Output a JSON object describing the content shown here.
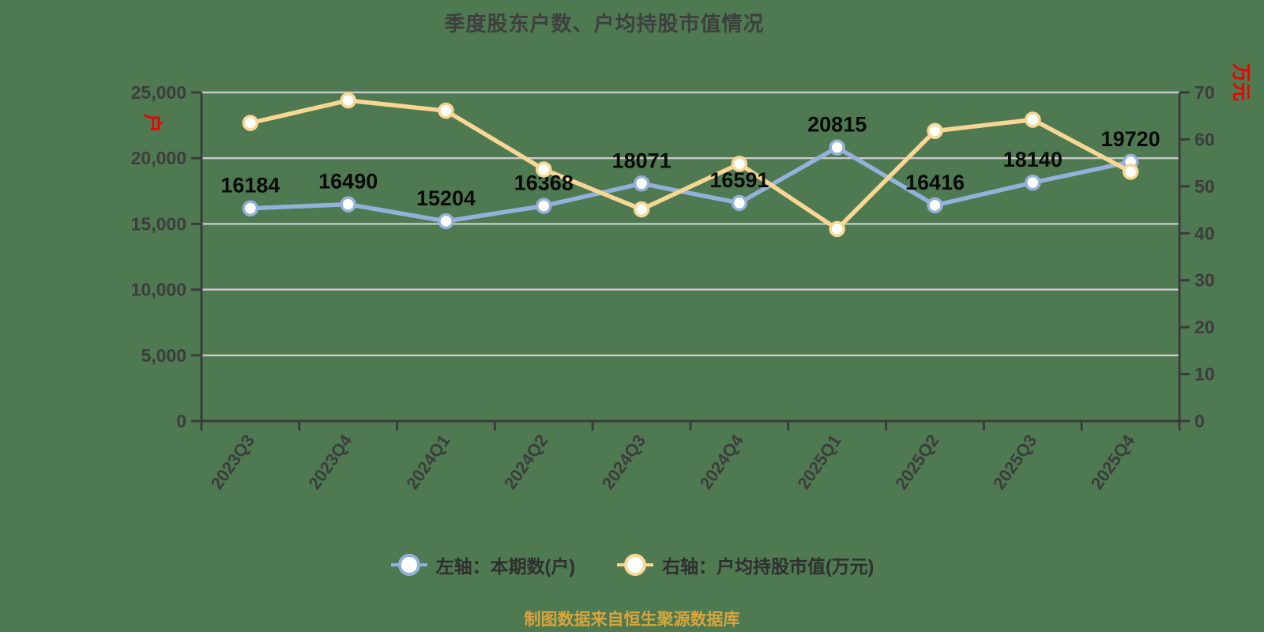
{
  "title": "季度股东户数、户均持股市值情况",
  "footer": "制图数据来自恒生聚源数据库",
  "axes": {
    "left": {
      "unit": "户",
      "ticks": [
        "25,000",
        "20,000",
        "15,000",
        "10,000",
        "5,000",
        "0"
      ]
    },
    "right": {
      "unit": "万元",
      "ticks": [
        "70",
        "60",
        "50",
        "40",
        "30",
        "20",
        "10",
        "0"
      ]
    }
  },
  "legend": [
    {
      "label": "左轴：本期数(户)",
      "color": "#94b1da"
    },
    {
      "label": "右轴：户均持股市值(万元)",
      "color": "#f8d794"
    }
  ],
  "colors": {
    "background": "#4e7951",
    "grid": "#c9c9c9",
    "axis": "#3b3b3b",
    "tick_text": "#3d3d3d",
    "data_label": "#0a0a0a",
    "unit_red": "#ee0000",
    "footer_orange": "#d7a53e",
    "marker_fill": "#ffffff"
  },
  "chart_data": {
    "type": "line",
    "title": "季度股东户数、户均持股市值情况",
    "categories": [
      "2023Q3",
      "2023Q4",
      "2024Q1",
      "2024Q2",
      "2024Q3",
      "2024Q4",
      "2025Q1",
      "2025Q2",
      "2025Q3",
      "2025Q4"
    ],
    "series": [
      {
        "name": "左轴：本期数(户)",
        "axis": "left",
        "color": "#94b1da",
        "values": [
          16184,
          16490,
          15204,
          16368,
          18071,
          16591,
          20815,
          16416,
          18140,
          19720
        ],
        "point_labels_shown": true
      },
      {
        "name": "右轴：户均持股市值(万元)",
        "axis": "right",
        "color": "#f8d794",
        "values": [
          63.5,
          68.3,
          66.1,
          53.6,
          45.1,
          54.8,
          40.9,
          61.8,
          64.2,
          53.1
        ],
        "point_labels_shown": false
      }
    ],
    "left_ylim": [
      0,
      25000
    ],
    "right_ylim": [
      0,
      70
    ],
    "grid": "horizontal",
    "legend_position": "bottom"
  }
}
